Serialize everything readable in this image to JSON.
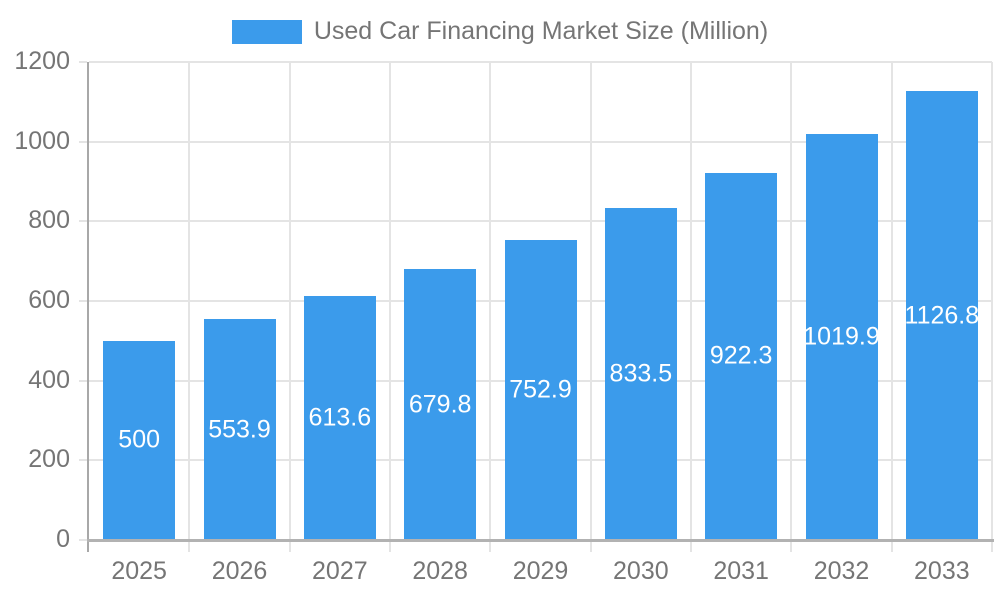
{
  "legend": {
    "label": "Used Car Financing Market Size (Million)"
  },
  "chart_data": {
    "type": "bar",
    "title": "Used Car Financing Market Size (Million)",
    "series_name": "Used Car Financing Market Size (Million)",
    "categories": [
      "2025",
      "2026",
      "2027",
      "2028",
      "2029",
      "2030",
      "2031",
      "2032",
      "2033"
    ],
    "values": [
      500,
      553.9,
      613.6,
      679.8,
      752.9,
      833.5,
      922.3,
      1019.9,
      1126.8
    ],
    "value_labels": [
      "500",
      "553.9",
      "613.6",
      "679.8",
      "752.9",
      "833.5",
      "922.3",
      "1019.9",
      "1126.8"
    ],
    "xlabel": "",
    "ylabel": "",
    "ylim": [
      0,
      1200
    ],
    "yticks": [
      0,
      200,
      400,
      600,
      800,
      1000,
      1200
    ],
    "grid": true,
    "legend_position": "top-center",
    "value_label_position": "center-of-bar",
    "colors": {
      "bar_fill": "#3b9beb",
      "value_label_text": "#ffffff",
      "tick_text": "#757575",
      "legend_text": "#757575",
      "gridline": "#e4e4e4",
      "y_axis_line": "#a8a8a8",
      "x_axis_line": "#b2b2b2",
      "background": "#ffffff"
    }
  }
}
